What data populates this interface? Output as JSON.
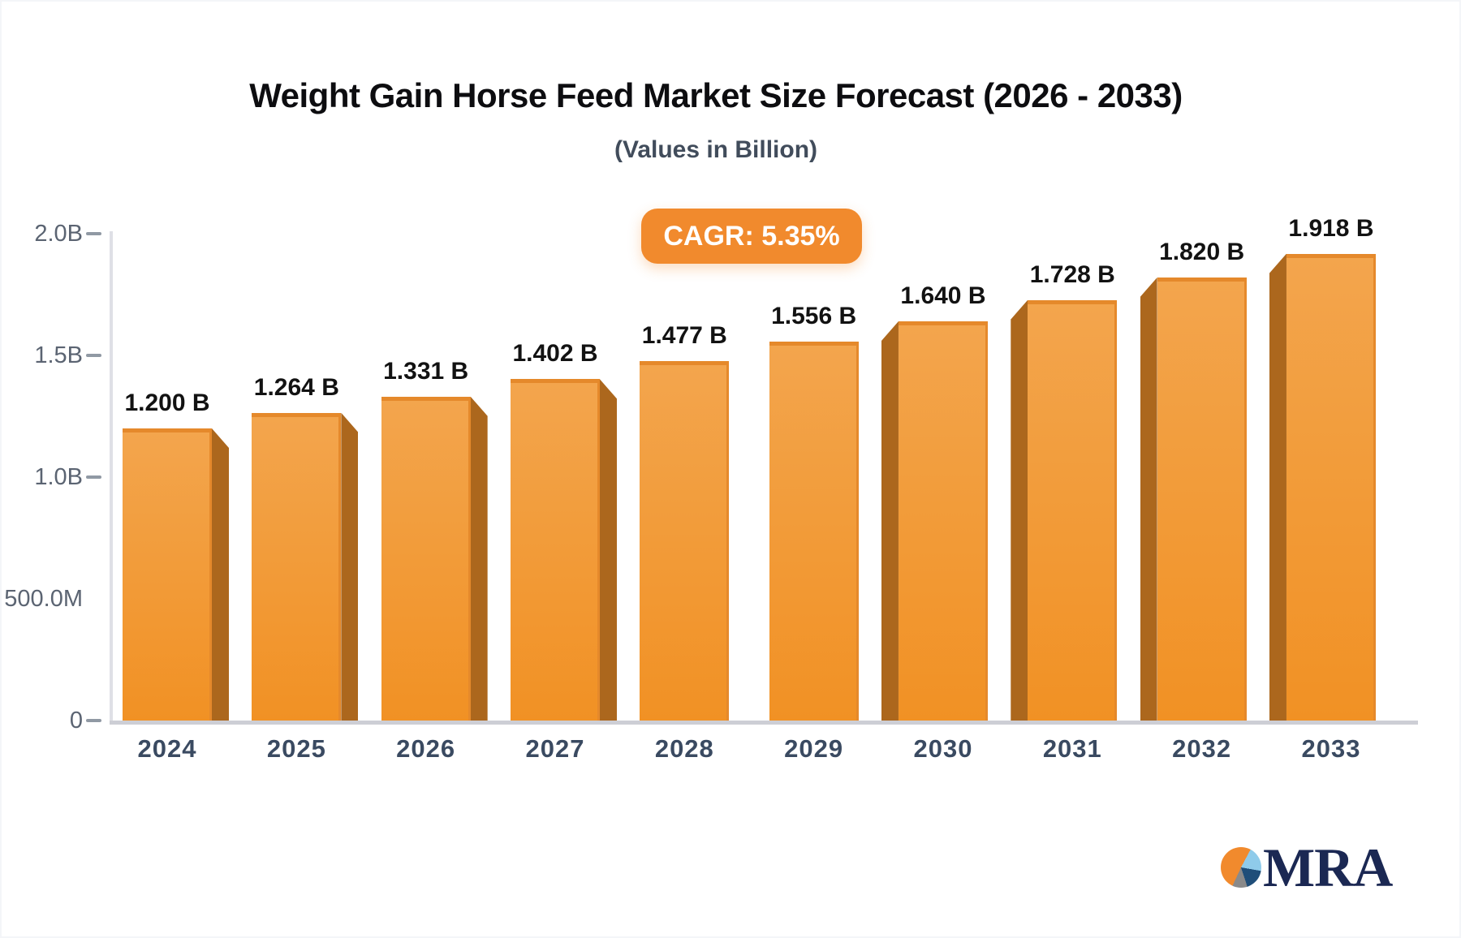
{
  "chart_data": {
    "type": "bar",
    "title": "Weight Gain Horse Feed Market Size Forecast (2026 - 2033)",
    "subtitle": "(Values in Billion)",
    "annotation": "CAGR: 5.35%",
    "categories": [
      "2024",
      "2025",
      "2026",
      "2027",
      "2028",
      "2029",
      "2030",
      "2031",
      "2032",
      "2033"
    ],
    "values": [
      1.2,
      1.264,
      1.331,
      1.402,
      1.477,
      1.556,
      1.64,
      1.728,
      1.82,
      1.918
    ],
    "value_labels": [
      "1.200 B",
      "1.264 B",
      "1.331 B",
      "1.402 B",
      "1.477 B",
      "1.556 B",
      "1.640 B",
      "1.728 B",
      "1.820 B",
      "1.918 B"
    ],
    "ylim": [
      0,
      2.0
    ],
    "yticks": [
      {
        "label": "2.0B",
        "value": 2.0,
        "dash": true
      },
      {
        "label": "1.5B",
        "value": 1.5,
        "dash": true
      },
      {
        "label": "1.0B",
        "value": 1.0,
        "dash": true
      },
      {
        "label": "500.0M",
        "value": 0.5,
        "dash": false
      },
      {
        "label": "0",
        "value": 0.0,
        "dash": true
      }
    ],
    "grid": false,
    "legend": null,
    "side_direction": [
      "right",
      "right",
      "right",
      "right",
      "none",
      "none",
      "left",
      "left",
      "left",
      "left"
    ],
    "colors": {
      "bar_face_top": "#F3A54D",
      "bar_face_bottom": "#F19124",
      "bar_edge": "#E5892B",
      "bar_side": "#AC671D",
      "badge_bg": "#F18A2D",
      "axis_line_x": "#CDCED5",
      "axis_line_y": "#DFE0E6",
      "tick_mark": "#9099A4",
      "tick_text": "#5B6472",
      "year_text": "#3A4A61",
      "value_text": "#121212"
    }
  },
  "logo": {
    "text": "MRA",
    "pie_colors": [
      "#F18A2D",
      "#8FCBEA",
      "#1F4E79",
      "#8A8A8A"
    ]
  }
}
